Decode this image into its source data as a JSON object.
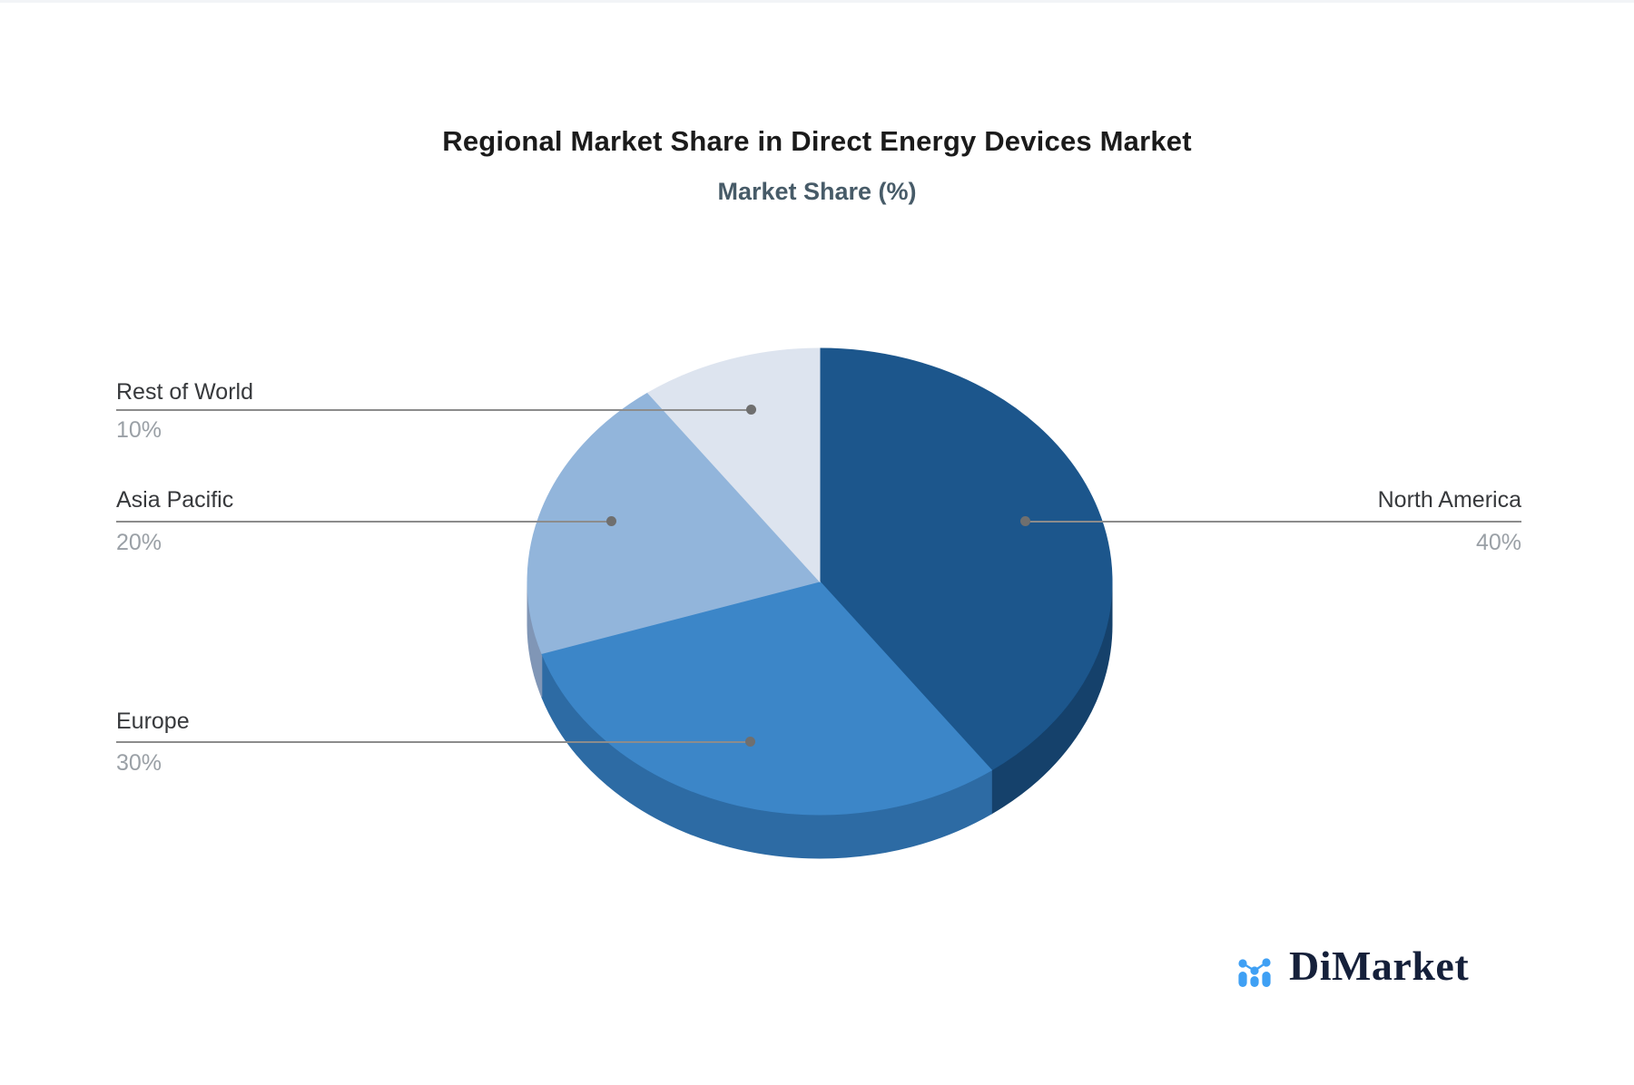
{
  "title": "Regional Market Share in Direct Energy Devices Market",
  "subtitle": "Market Share (%)",
  "chart_data": {
    "type": "pie",
    "style": "3d",
    "title": "Regional Market Share in Direct Energy Devices Market",
    "subtitle": "Market Share (%)",
    "unit": "%",
    "start_angle_deg": -90,
    "direction": "clockwise",
    "legend_position": "callout-leader-lines",
    "slices": [
      {
        "label": "North America",
        "value": 40,
        "display": "40%",
        "color": "#1c568c",
        "side_color": "#15416b",
        "callout_side": "right"
      },
      {
        "label": "Europe",
        "value": 30,
        "display": "30%",
        "color": "#3c86c8",
        "side_color": "#2d6ba4",
        "callout_side": "left"
      },
      {
        "label": "Asia Pacific",
        "value": 20,
        "display": "20%",
        "color": "#92b5db",
        "side_color": "#8096b6",
        "callout_side": "left"
      },
      {
        "label": "Rest of World",
        "value": 10,
        "display": "10%",
        "color": "#dde4ef",
        "side_color": "#c9d2e0",
        "callout_side": "left"
      }
    ]
  },
  "brand": {
    "name": "DiMarket",
    "icon": "bar-chart-logo-icon",
    "icon_color": "#3fa0f4",
    "text_color": "#15203a"
  }
}
